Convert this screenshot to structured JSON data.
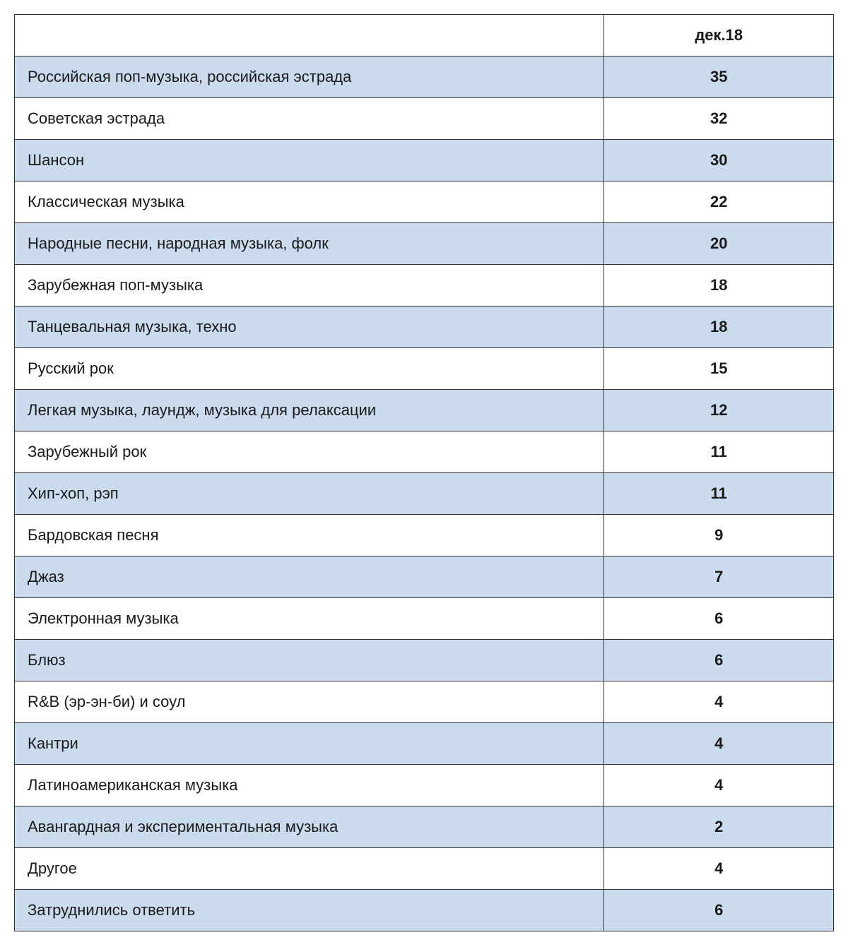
{
  "table": {
    "type": "table",
    "column_header": "дек.18",
    "columns": [
      "label",
      "value"
    ],
    "column_widths_pct": [
      72,
      28
    ],
    "header_background_color": "#ffffff",
    "row_alt_background_color": "#cbdbee",
    "row_plain_background_color": "#ffffff",
    "border_color": "#333333",
    "text_color": "#1a1a1a",
    "label_fontsize": 22,
    "label_fontweight": "normal",
    "value_fontsize": 22,
    "value_fontweight": "bold",
    "header_fontsize": 22,
    "header_fontweight": "bold",
    "rows": [
      {
        "label": "Российская поп-музыка, российская эстрада",
        "value": 35
      },
      {
        "label": "Советская эстрада",
        "value": 32
      },
      {
        "label": "Шансон",
        "value": 30
      },
      {
        "label": "Классическая музыка",
        "value": 22
      },
      {
        "label": "Народные песни, народная музыка, фолк",
        "value": 20
      },
      {
        "label": "Зарубежная поп-музыка",
        "value": 18
      },
      {
        "label": "Танцевальная музыка, техно",
        "value": 18
      },
      {
        "label": "Русский рок",
        "value": 15
      },
      {
        "label": "Легкая музыка, лаундж, музыка для релаксации",
        "value": 12
      },
      {
        "label": "Зарубежный рок",
        "value": 11
      },
      {
        "label": "Хип-хоп, рэп",
        "value": 11
      },
      {
        "label": "Бардовская песня",
        "value": 9
      },
      {
        "label": "Джаз",
        "value": 7
      },
      {
        "label": "Электронная музыка",
        "value": 6
      },
      {
        "label": "Блюз",
        "value": 6
      },
      {
        "label": "R&B (эр-эн-би) и соул",
        "value": 4
      },
      {
        "label": "Кантри",
        "value": 4
      },
      {
        "label": "Латиноамериканская музыка",
        "value": 4
      },
      {
        "label": "Авангардная и экспериментальная музыка",
        "value": 2
      },
      {
        "label": "Другое",
        "value": 4
      },
      {
        "label": "Затруднились ответить",
        "value": 6
      }
    ]
  }
}
